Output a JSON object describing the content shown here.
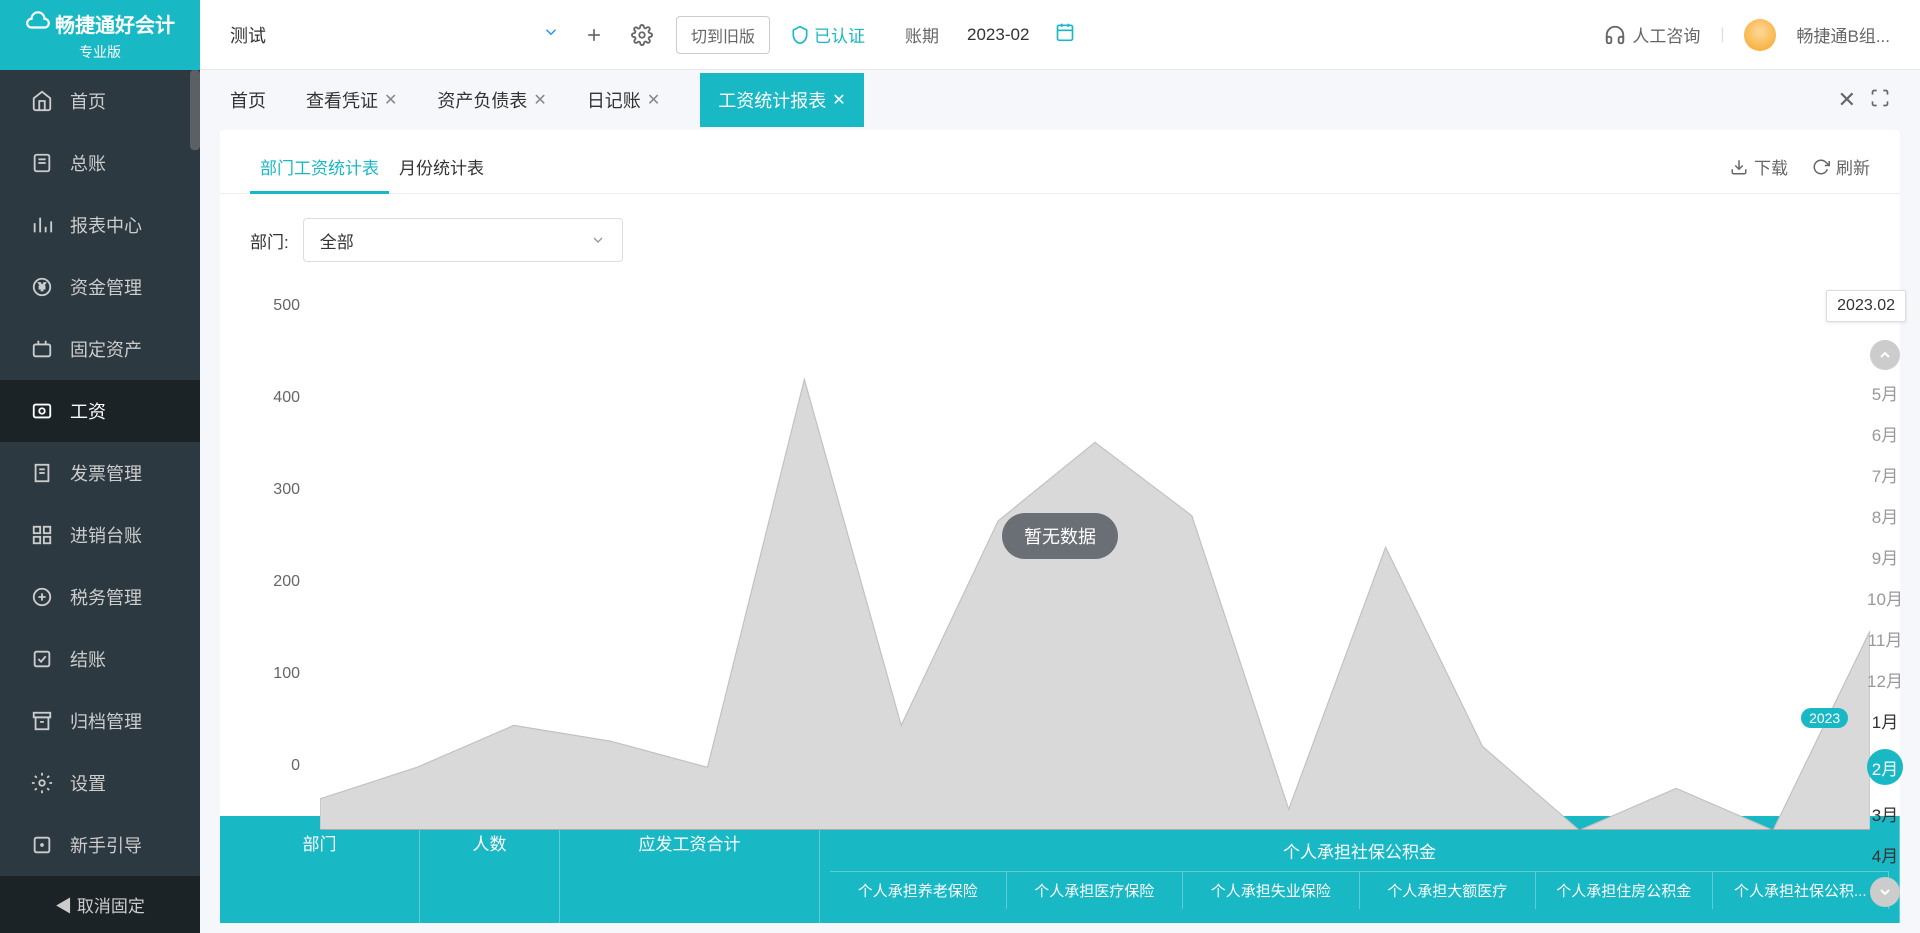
{
  "brand": {
    "name": "畅捷通好会计",
    "edition": "专业版"
  },
  "header": {
    "company": "测试",
    "switch_old": "切到旧版",
    "verified": "已认证",
    "period_label": "账期",
    "period_value": "2023-02",
    "support": "人工咨询",
    "username": "畅捷通B组..."
  },
  "sidebar": {
    "items": [
      {
        "label": "首页",
        "icon": "home"
      },
      {
        "label": "总账",
        "icon": "ledger"
      },
      {
        "label": "报表中心",
        "icon": "report"
      },
      {
        "label": "资金管理",
        "icon": "funds"
      },
      {
        "label": "固定资产",
        "icon": "asset"
      },
      {
        "label": "工资",
        "icon": "salary",
        "active": true
      },
      {
        "label": "发票管理",
        "icon": "invoice"
      },
      {
        "label": "进销台账",
        "icon": "stock"
      },
      {
        "label": "税务管理",
        "icon": "tax"
      },
      {
        "label": "结账",
        "icon": "close"
      },
      {
        "label": "归档管理",
        "icon": "archive"
      },
      {
        "label": "设置",
        "icon": "settings"
      },
      {
        "label": "新手引导",
        "icon": "guide"
      }
    ],
    "footer": "◀ 取消固定"
  },
  "tabs": [
    {
      "label": "首页",
      "closable": false
    },
    {
      "label": "查看凭证",
      "closable": true
    },
    {
      "label": "资产负债表",
      "closable": true
    },
    {
      "label": "日记账",
      "closable": true
    },
    {
      "label": "工资统计报表",
      "closable": true,
      "active": true
    }
  ],
  "sub_tabs": {
    "a": "部门工资统计表",
    "b": "月份统计表",
    "download": "下载",
    "refresh": "刷新"
  },
  "filter": {
    "label": "部门:",
    "value": "全部"
  },
  "chart": {
    "type": "area",
    "ylim": [
      0,
      500
    ],
    "ytick_step": 100,
    "yticks": [
      500,
      400,
      300,
      200,
      100,
      0
    ],
    "fill_color": "#d9d9d9",
    "stroke_color": "#c0c0c0",
    "background": "#ffffff",
    "no_data_label": "暂无数据",
    "points": [
      30,
      60,
      100,
      85,
      60,
      430,
      100,
      295,
      370,
      300,
      20,
      270,
      80,
      0,
      40,
      0,
      190
    ]
  },
  "date_badge": "2023.02",
  "month_rail": {
    "year_badge": "2023",
    "months": [
      "5月",
      "6月",
      "7月",
      "8月",
      "9月",
      "10月",
      "11月",
      "12月",
      "1月",
      "2月",
      "3月",
      "4月"
    ],
    "active": "2月",
    "dark_from_index": 8
  },
  "table": {
    "cols": {
      "dept": "部门",
      "count": "人数",
      "pay": "应发工资合计",
      "group": "个人承担社保公积金"
    },
    "sub_cols": [
      "个人承担养老保险",
      "个人承担医疗保险",
      "个人承担失业保险",
      "个人承担大额医疗",
      "个人承担住房公积金",
      "个人承担社保公积..."
    ]
  },
  "colors": {
    "brand": "#19b8c5",
    "sidebar_bg": "#2d3941",
    "sidebar_active": "#1b2327",
    "text": "#333333",
    "muted": "#999999",
    "badge_bg": "#6a6f76"
  }
}
